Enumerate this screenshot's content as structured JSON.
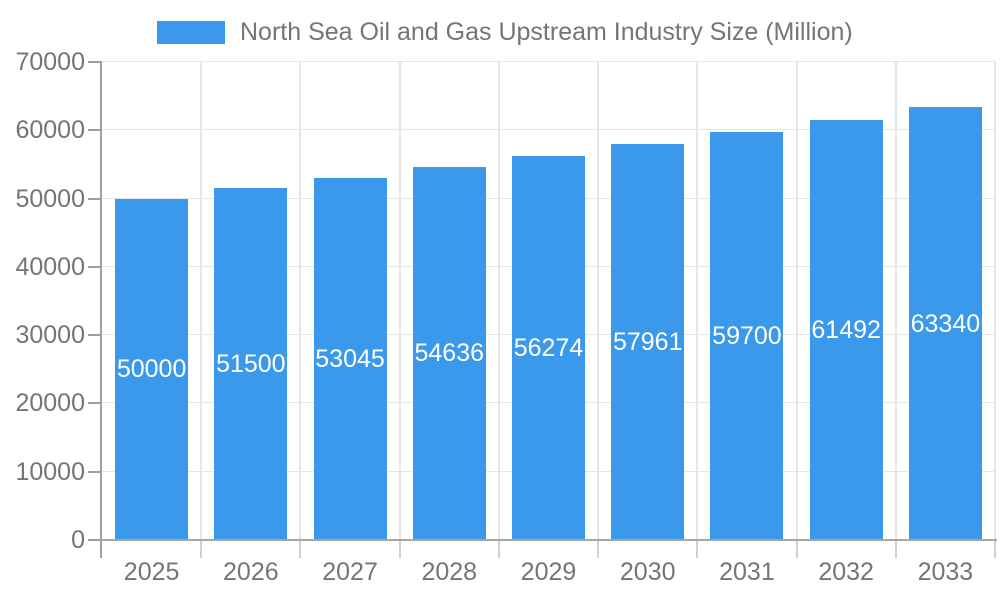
{
  "chart": {
    "title": "North Sea Oil and Gas Upstream Industry Size (Million)"
  },
  "colors": {
    "bar": "#3B99EC",
    "bar_label": "#FFFFFF",
    "axis_text": "#757575",
    "title_text": "#757575",
    "grid": "#E6E6E6",
    "axis_line": "#9E9E9E",
    "baseline": "#A6A6A6",
    "x_tick": "#CFCFCF",
    "background": "#FFFFFF"
  },
  "chart_data": {
    "type": "bar",
    "title": "North Sea Oil and Gas Upstream Industry Size (Million)",
    "categories": [
      "2025",
      "2026",
      "2027",
      "2028",
      "2029",
      "2030",
      "2031",
      "2032",
      "2033"
    ],
    "series": [
      {
        "name": "North Sea Oil and Gas Upstream Industry Size (Million)",
        "values": [
          50000,
          51500,
          53045,
          54636,
          56274,
          57961,
          59700,
          61492,
          63340
        ]
      }
    ],
    "bar_labels": [
      "50000",
      "51500",
      "53045",
      "54636",
      "56274",
      "57961",
      "59700",
      "61492",
      "63340"
    ],
    "xlabel": "",
    "ylabel": "",
    "ylim": [
      0,
      70000
    ],
    "ytick_step": 10000,
    "ytick_labels": [
      "0",
      "10000",
      "20000",
      "30000",
      "40000",
      "50000",
      "60000",
      "70000"
    ],
    "grid": true,
    "legend_position": "top",
    "bar_label_position": "middle-inside"
  }
}
